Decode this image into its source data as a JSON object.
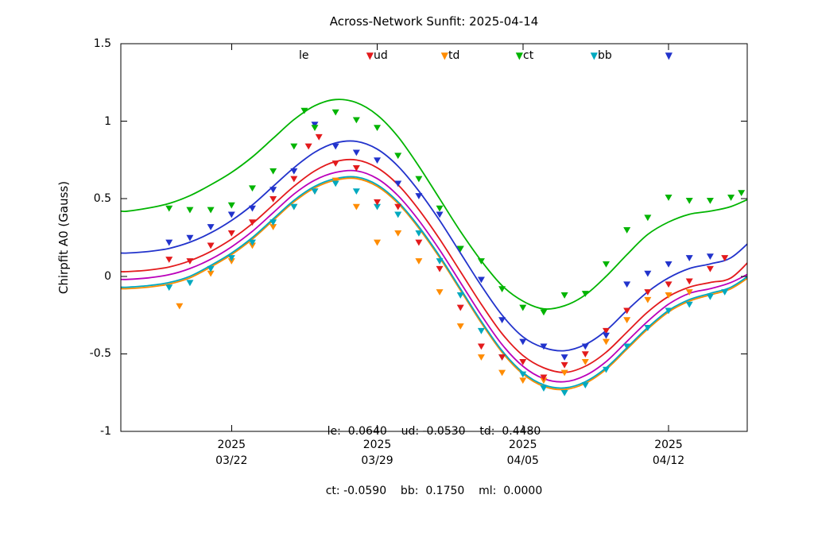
{
  "chart_data": {
    "type": "line+scatter",
    "title": "Across-Network Sunfit: 2025-04-14",
    "ylabel": "Chirpfit A0 (Gauss)",
    "x_unit": "days since 2025-03-17",
    "x_domain": [
      -0.32,
      29.78
    ],
    "y_axis": {
      "range": [
        -1,
        1.5
      ],
      "ticks": [
        1.5,
        1,
        0.5,
        0,
        -0.5,
        -1
      ],
      "tick_labels": [
        "1.5",
        "1",
        "0.5",
        "0",
        "-0.5",
        "-1"
      ]
    },
    "x_axis": {
      "ticks": [
        {
          "t": 5,
          "year": "2025",
          "date": "03/22"
        },
        {
          "t": 12,
          "year": "2025",
          "date": "03/29"
        },
        {
          "t": 19,
          "year": "2025",
          "date": "04/05"
        },
        {
          "t": 26,
          "year": "2025",
          "date": "04/12"
        }
      ]
    },
    "legend": [
      "le",
      "ud",
      "td",
      "ct",
      "bb"
    ],
    "fit_values": {
      "le": 0.064,
      "ud": -0.053,
      "td": 0.448,
      "ct": -0.059,
      "bb": 0.175,
      "ml": 0.0
    },
    "annotations": [
      "le:  0.0640    ud: -0.0530    td:  0.4480",
      "ct: -0.0590    bb:  0.1750    ml:  0.0000"
    ],
    "series": [
      {
        "name": "ud",
        "color": "#ff8c00",
        "marker": "triangle-down",
        "curve": [
          -0.08,
          -0.07,
          -0.05,
          -0.01,
          0.06,
          0.14,
          0.24,
          0.36,
          0.48,
          0.57,
          0.62,
          0.63,
          0.58,
          0.47,
          0.31,
          0.12,
          -0.09,
          -0.3,
          -0.49,
          -0.63,
          -0.71,
          -0.73,
          -0.69,
          -0.6,
          -0.47,
          -0.34,
          -0.23,
          -0.16,
          -0.12,
          -0.08,
          0.01
        ],
        "points": [
          [
            2.5,
            -0.19
          ],
          [
            4,
            0.02
          ],
          [
            5,
            0.1
          ],
          [
            6,
            0.2
          ],
          [
            7,
            0.32
          ],
          [
            8,
            0.45
          ],
          [
            9,
            0.55
          ],
          [
            10,
            0.62
          ],
          [
            11,
            0.45
          ],
          [
            12,
            0.22
          ],
          [
            13,
            0.28
          ],
          [
            14,
            0.1
          ],
          [
            15,
            -0.1
          ],
          [
            16,
            -0.32
          ],
          [
            17,
            -0.52
          ],
          [
            18,
            -0.62
          ],
          [
            19,
            -0.67
          ],
          [
            20,
            -0.67
          ],
          [
            21,
            -0.62
          ],
          [
            22,
            -0.55
          ],
          [
            23,
            -0.42
          ],
          [
            24,
            -0.28
          ],
          [
            25,
            -0.15
          ],
          [
            26,
            -0.12
          ],
          [
            27,
            -0.1
          ]
        ]
      },
      {
        "name": "ct",
        "color": "#00a9bf",
        "marker": "triangle-down",
        "curve": [
          -0.07,
          -0.06,
          -0.04,
          0.0,
          0.07,
          0.15,
          0.25,
          0.37,
          0.49,
          0.58,
          0.63,
          0.64,
          0.59,
          0.48,
          0.32,
          0.13,
          -0.08,
          -0.29,
          -0.48,
          -0.62,
          -0.7,
          -0.72,
          -0.68,
          -0.59,
          -0.46,
          -0.33,
          -0.22,
          -0.15,
          -0.11,
          -0.07,
          0.02
        ],
        "points": [
          [
            2,
            -0.07
          ],
          [
            3,
            -0.04
          ],
          [
            4,
            0.05
          ],
          [
            5,
            0.12
          ],
          [
            6,
            0.22
          ],
          [
            7,
            0.35
          ],
          [
            8,
            0.45
          ],
          [
            9,
            0.55
          ],
          [
            10,
            0.6
          ],
          [
            11,
            0.55
          ],
          [
            12,
            0.45
          ],
          [
            13,
            0.4
          ],
          [
            14,
            0.28
          ],
          [
            15,
            0.1
          ],
          [
            16,
            -0.12
          ],
          [
            17,
            -0.35
          ],
          [
            18,
            -0.52
          ],
          [
            19,
            -0.63
          ],
          [
            20,
            -0.72
          ],
          [
            21,
            -0.75
          ],
          [
            22,
            -0.7
          ],
          [
            23,
            -0.6
          ],
          [
            24,
            -0.45
          ],
          [
            25,
            -0.33
          ],
          [
            26,
            -0.22
          ],
          [
            27,
            -0.18
          ],
          [
            28,
            -0.13
          ],
          [
            28.7,
            -0.1
          ]
        ]
      },
      {
        "name": "ml",
        "color": "#bb00bb",
        "marker": "none",
        "curve": [
          -0.02,
          -0.01,
          0.01,
          0.05,
          0.11,
          0.19,
          0.29,
          0.41,
          0.53,
          0.62,
          0.67,
          0.68,
          0.63,
          0.52,
          0.36,
          0.17,
          -0.04,
          -0.25,
          -0.44,
          -0.58,
          -0.66,
          -0.68,
          -0.64,
          -0.55,
          -0.42,
          -0.29,
          -0.18,
          -0.11,
          -0.08,
          -0.04,
          0.03
        ],
        "points": []
      },
      {
        "name": "le",
        "color": "#e31a1c",
        "marker": "triangle-down",
        "curve": [
          0.03,
          0.04,
          0.06,
          0.1,
          0.16,
          0.24,
          0.34,
          0.46,
          0.58,
          0.68,
          0.74,
          0.75,
          0.7,
          0.59,
          0.43,
          0.24,
          0.03,
          -0.18,
          -0.37,
          -0.51,
          -0.59,
          -0.62,
          -0.58,
          -0.49,
          -0.36,
          -0.23,
          -0.13,
          -0.07,
          -0.04,
          -0.01,
          0.12
        ],
        "points": [
          [
            2,
            0.11
          ],
          [
            3,
            0.1
          ],
          [
            4,
            0.2
          ],
          [
            5,
            0.28
          ],
          [
            6,
            0.35
          ],
          [
            7,
            0.5
          ],
          [
            8,
            0.63
          ],
          [
            8.7,
            0.84
          ],
          [
            9.2,
            0.9
          ],
          [
            10,
            0.73
          ],
          [
            11,
            0.7
          ],
          [
            12,
            0.48
          ],
          [
            13,
            0.45
          ],
          [
            14,
            0.22
          ],
          [
            15,
            0.05
          ],
          [
            16,
            -0.2
          ],
          [
            17,
            -0.45
          ],
          [
            18,
            -0.52
          ],
          [
            19,
            -0.55
          ],
          [
            20,
            -0.65
          ],
          [
            21,
            -0.57
          ],
          [
            22,
            -0.5
          ],
          [
            23,
            -0.35
          ],
          [
            24,
            -0.22
          ],
          [
            25,
            -0.1
          ],
          [
            26,
            -0.05
          ],
          [
            27,
            -0.03
          ],
          [
            28,
            0.05
          ],
          [
            28.7,
            0.12
          ]
        ]
      },
      {
        "name": "bb",
        "color": "#2233cc",
        "marker": "triangle-down",
        "curve": [
          0.15,
          0.16,
          0.18,
          0.22,
          0.28,
          0.36,
          0.46,
          0.58,
          0.7,
          0.8,
          0.86,
          0.87,
          0.82,
          0.71,
          0.55,
          0.36,
          0.15,
          -0.06,
          -0.25,
          -0.39,
          -0.46,
          -0.48,
          -0.44,
          -0.35,
          -0.22,
          -0.1,
          -0.01,
          0.05,
          0.08,
          0.12,
          0.24
        ],
        "points": [
          [
            2,
            0.22
          ],
          [
            3,
            0.25
          ],
          [
            4,
            0.32
          ],
          [
            5,
            0.4
          ],
          [
            6,
            0.44
          ],
          [
            7,
            0.56
          ],
          [
            8,
            0.68
          ],
          [
            9,
            0.98
          ],
          [
            10,
            0.84
          ],
          [
            11,
            0.8
          ],
          [
            12,
            0.75
          ],
          [
            13,
            0.6
          ],
          [
            14,
            0.52
          ],
          [
            15,
            0.4
          ],
          [
            16,
            0.18
          ],
          [
            17,
            -0.02
          ],
          [
            18,
            -0.28
          ],
          [
            19,
            -0.42
          ],
          [
            20,
            -0.45
          ],
          [
            21,
            -0.52
          ],
          [
            22,
            -0.45
          ],
          [
            23,
            -0.38
          ],
          [
            24,
            -0.05
          ],
          [
            25,
            0.02
          ],
          [
            26,
            0.08
          ],
          [
            27,
            0.12
          ],
          [
            28,
            0.13
          ]
        ]
      },
      {
        "name": "td",
        "color": "#00b400",
        "marker": "triangle-down",
        "curve": [
          0.42,
          0.44,
          0.47,
          0.52,
          0.59,
          0.67,
          0.77,
          0.89,
          1.01,
          1.1,
          1.14,
          1.12,
          1.04,
          0.9,
          0.71,
          0.5,
          0.29,
          0.1,
          -0.06,
          -0.16,
          -0.21,
          -0.19,
          -0.12,
          0.0,
          0.14,
          0.27,
          0.35,
          0.4,
          0.42,
          0.45,
          0.51
        ],
        "points": [
          [
            2,
            0.44
          ],
          [
            3,
            0.43
          ],
          [
            4,
            0.43
          ],
          [
            5,
            0.46
          ],
          [
            6,
            0.57
          ],
          [
            7,
            0.68
          ],
          [
            8,
            0.84
          ],
          [
            8.5,
            1.07
          ],
          [
            9,
            0.96
          ],
          [
            10,
            1.06
          ],
          [
            11,
            1.01
          ],
          [
            12,
            0.96
          ],
          [
            13,
            0.78
          ],
          [
            14,
            0.63
          ],
          [
            15,
            0.44
          ],
          [
            16,
            0.18
          ],
          [
            17,
            0.1
          ],
          [
            18,
            -0.08
          ],
          [
            19,
            -0.2
          ],
          [
            20,
            -0.23
          ],
          [
            21,
            -0.12
          ],
          [
            22,
            -0.11
          ],
          [
            23,
            0.08
          ],
          [
            24,
            0.3
          ],
          [
            25,
            0.38
          ],
          [
            26,
            0.51
          ],
          [
            27,
            0.49
          ],
          [
            28,
            0.49
          ],
          [
            29,
            0.51
          ],
          [
            29.5,
            0.54
          ]
        ]
      }
    ]
  }
}
